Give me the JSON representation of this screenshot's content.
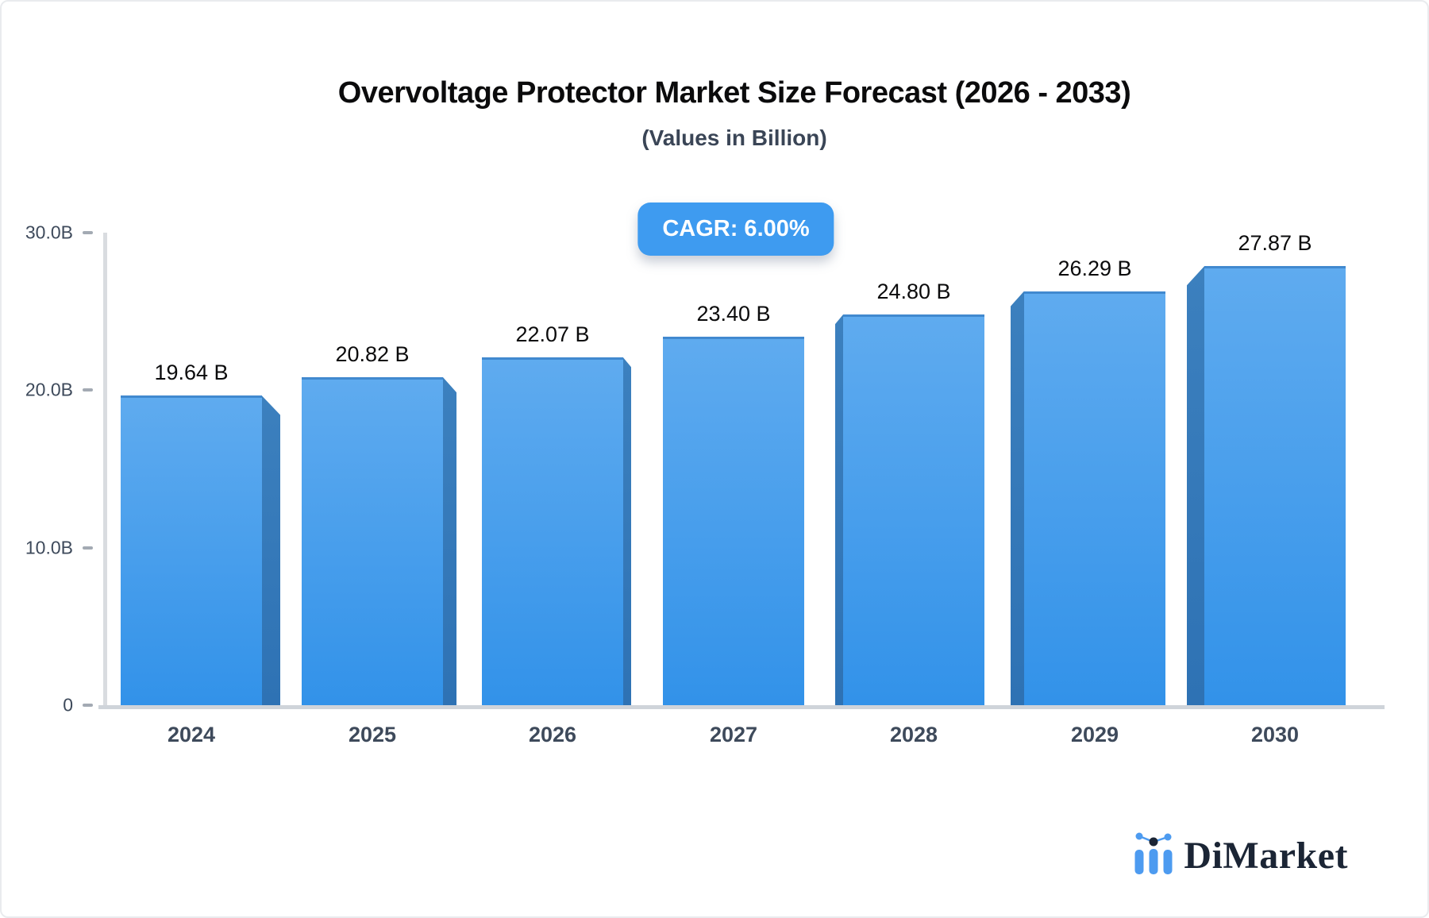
{
  "header": {
    "title": "Overvoltage Protector Market Size Forecast (2026 - 2033)",
    "subtitle": "(Values in Billion)",
    "cagr_badge": "CAGR: 6.00%"
  },
  "chart_data": {
    "type": "bar",
    "title": "Overvoltage Protector Market Size Forecast (2026 - 2033)",
    "subtitle": "(Values in Billion)",
    "categories": [
      "2024",
      "2025",
      "2026",
      "2027",
      "2028",
      "2029",
      "2030"
    ],
    "values": [
      19.64,
      20.82,
      22.07,
      23.4,
      24.8,
      26.29,
      27.87
    ],
    "value_labels": [
      "19.64 B",
      "20.82 B",
      "22.07 B",
      "23.40 B",
      "24.80 B",
      "26.29 B",
      "27.87 B"
    ],
    "ylim": [
      0,
      30
    ],
    "yticks": [
      {
        "value": 0,
        "label": "0"
      },
      {
        "value": 10,
        "label": "10.0B"
      },
      {
        "value": 20,
        "label": "20.0B"
      },
      {
        "value": 30,
        "label": "30.0B"
      }
    ],
    "grid": false,
    "legend": false,
    "annotations": [
      "CAGR: 6.00%"
    ],
    "style": "3d-perspective-bars"
  },
  "footer": {
    "brand_name": "DiMarket"
  },
  "colors": {
    "accent": "#3E9BF0",
    "bar_top": "#5FABEF",
    "bar_bottom": "#3292E9",
    "bar_edge": "#4189CF",
    "bar_side_top": "#3C80BE",
    "bar_side_bottom": "#2E72B4",
    "axis": "#D9DCE0",
    "baseline": "#CFD4DA",
    "tick": "#A3AAB3",
    "label": "#3E4A5B",
    "title": "#0B0B0C",
    "subtitle": "#3A4556",
    "brand_navy": "#1B2535",
    "logo_blue": "#4D9BF0"
  }
}
